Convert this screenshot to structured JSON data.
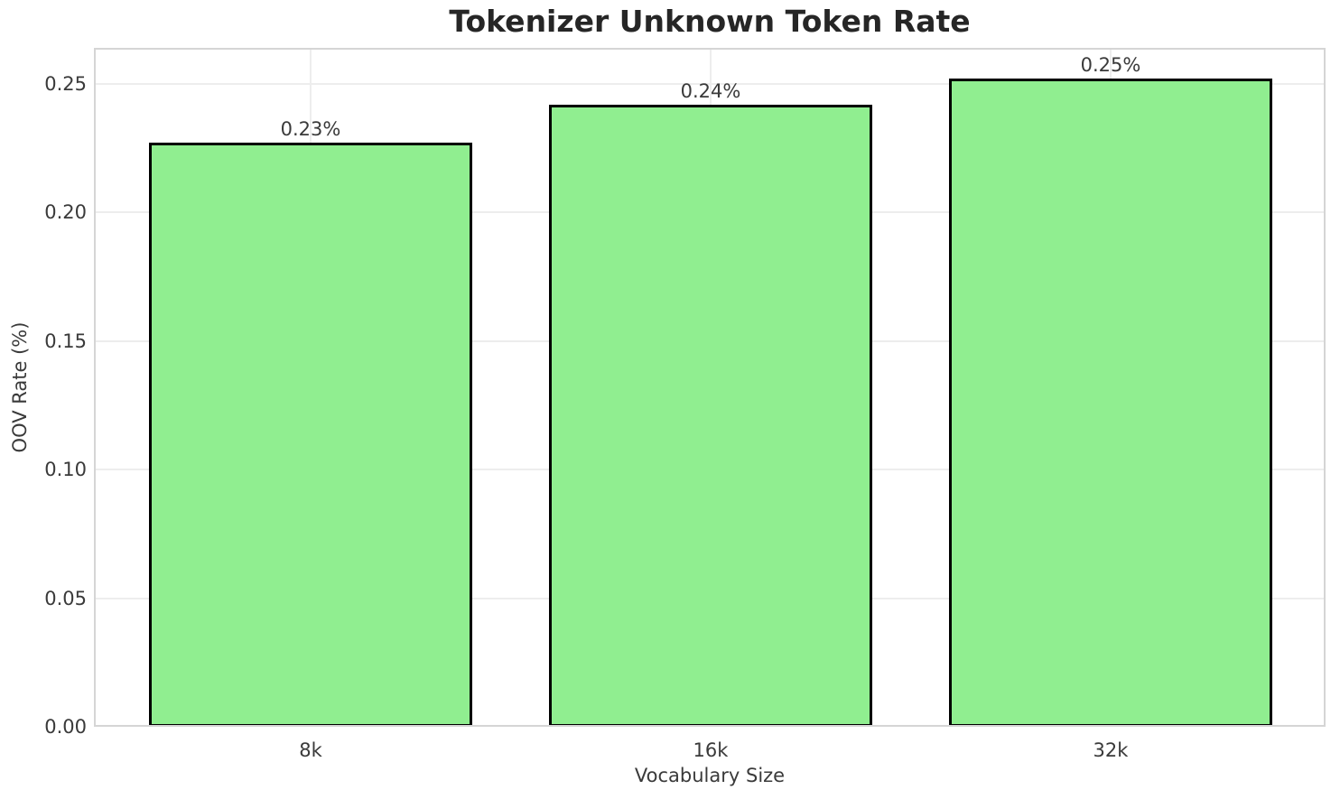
{
  "chart_data": {
    "type": "bar",
    "title": "Tokenizer Unknown Token Rate",
    "xlabel": "Vocabulary Size",
    "ylabel": "OOV Rate (%)",
    "categories": [
      "8k",
      "16k",
      "32k"
    ],
    "values": [
      0.227,
      0.242,
      0.252
    ],
    "bar_labels": [
      "0.23%",
      "0.24%",
      "0.25%"
    ],
    "ylim": [
      0,
      0.264
    ],
    "yticks": [
      0,
      0.05,
      0.1,
      0.15,
      0.2,
      0.25
    ],
    "ytick_labels": [
      "0.00",
      "0.05",
      "0.10",
      "0.15",
      "0.20",
      "0.25"
    ],
    "grid": true,
    "legend": false,
    "colors": {
      "bar_fill": "#90ee90",
      "bar_edge": "#000000",
      "grid": "#ededed",
      "spine": "#d5d5d5",
      "text": "#3a3a3a",
      "title_text": "#262626",
      "background": "#ffffff"
    }
  }
}
